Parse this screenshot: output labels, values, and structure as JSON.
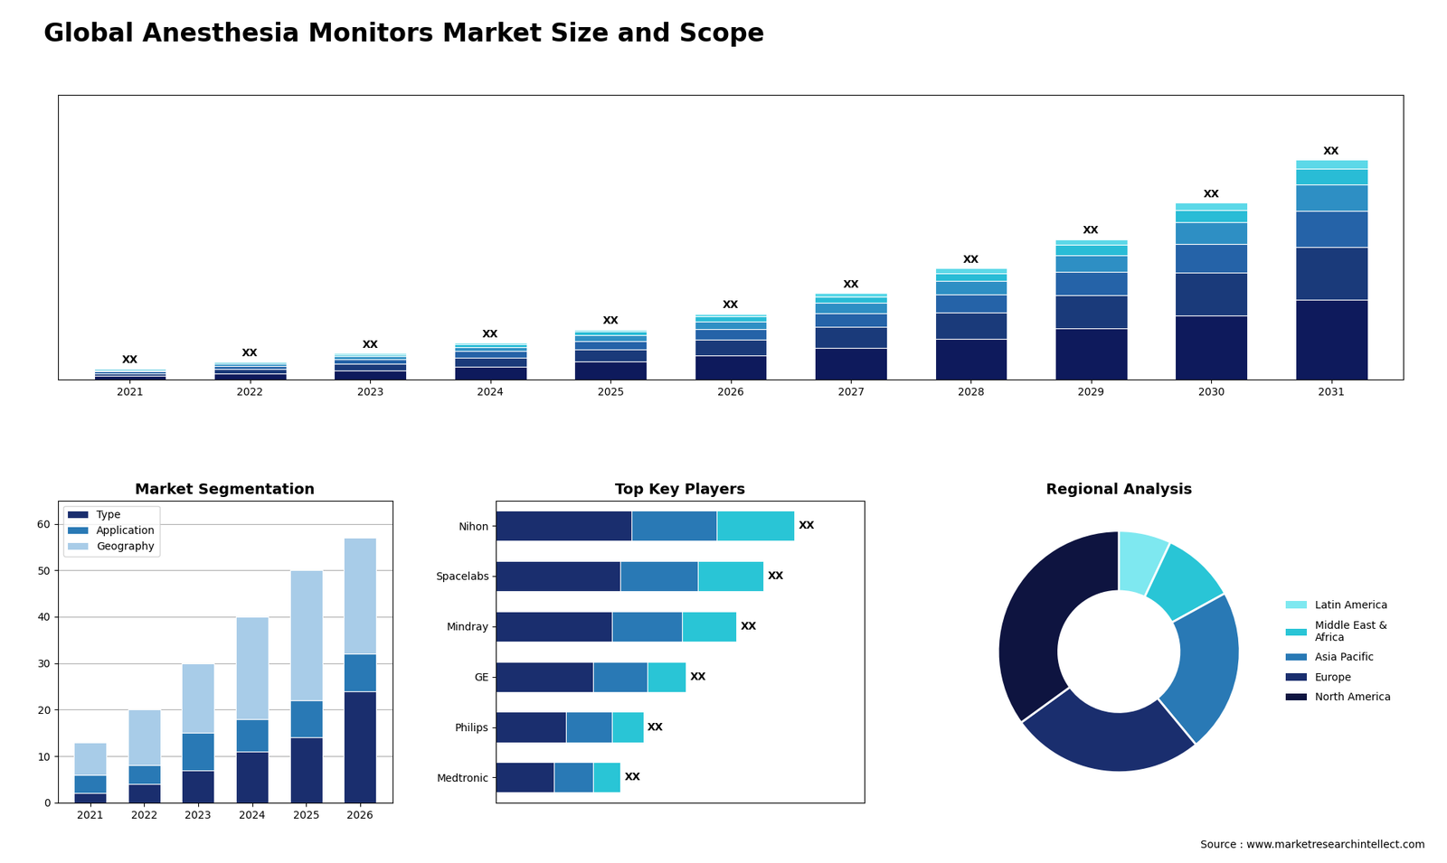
{
  "title": "Global Anesthesia Monitors Market Size and Scope",
  "source": "Source : www.marketresearchintellect.com",
  "chart_data": [
    {
      "type": "bar",
      "stacked": true,
      "categories": [
        "2021",
        "2022",
        "2023",
        "2024",
        "2025",
        "2026",
        "2027",
        "2028",
        "2029",
        "2030",
        "2031"
      ],
      "series": [
        {
          "color": "#0e1a5c",
          "values": [
            0.6,
            1.0,
            1.5,
            2.1,
            2.9,
            3.8,
            5.0,
            6.4,
            8.1,
            10.2,
            12.7
          ]
        },
        {
          "color": "#1a3a7a",
          "values": [
            0.4,
            0.7,
            1.0,
            1.4,
            1.9,
            2.5,
            3.3,
            4.2,
            5.3,
            6.7,
            8.3
          ]
        },
        {
          "color": "#2563a8",
          "values": [
            0.3,
            0.5,
            0.7,
            1.0,
            1.3,
            1.7,
            2.25,
            2.9,
            3.65,
            4.6,
            5.7
          ]
        },
        {
          "color": "#2e8fc4",
          "values": [
            0.2,
            0.35,
            0.5,
            0.7,
            0.95,
            1.25,
            1.65,
            2.1,
            2.65,
            3.35,
            4.15
          ]
        },
        {
          "color": "#29bcd6",
          "values": [
            0.15,
            0.2,
            0.3,
            0.42,
            0.56,
            0.74,
            0.97,
            1.25,
            1.58,
            2.0,
            2.47
          ]
        },
        {
          "color": "#5cd8e8",
          "values": [
            0.1,
            0.12,
            0.18,
            0.25,
            0.33,
            0.44,
            0.58,
            0.74,
            0.93,
            1.18,
            1.46
          ]
        }
      ],
      "ylim": [
        0,
        45
      ],
      "tick_labels": "x",
      "grid": false,
      "total_labels": [
        "XX",
        "XX",
        "XX",
        "XX",
        "XX",
        "XX",
        "XX",
        "XX",
        "XX",
        "XX",
        "XX"
      ]
    },
    {
      "type": "bar",
      "stacked": true,
      "title": "Market Segmentation",
      "categories": [
        "2021",
        "2022",
        "2023",
        "2024",
        "2025",
        "2026"
      ],
      "series": [
        {
          "name": "Type",
          "color": "#1a2e6e",
          "values": [
            2,
            4,
            7,
            11,
            14,
            24
          ]
        },
        {
          "name": "Application",
          "color": "#2979b5",
          "values": [
            4,
            4,
            8,
            7,
            8,
            8
          ]
        },
        {
          "name": "Geography",
          "color": "#a8cce8",
          "values": [
            7,
            12,
            15,
            22,
            28,
            25
          ]
        }
      ],
      "ylim": [
        0,
        65
      ],
      "yticks": [
        0,
        10,
        20,
        30,
        40,
        50,
        60
      ],
      "grid": true,
      "legend": "upper left"
    },
    {
      "type": "bar",
      "stacked": true,
      "orientation": "horizontal",
      "title": "Top Key Players",
      "categories": [
        "Nihon",
        "Spacelabs",
        "Mindray",
        "GE",
        "Philips",
        "Medtronic"
      ],
      "series": [
        {
          "color": "#1a2e6e",
          "values": [
            35,
            32,
            30,
            25,
            18,
            15
          ]
        },
        {
          "color": "#2979b5",
          "values": [
            22,
            20,
            18,
            14,
            12,
            10
          ]
        },
        {
          "color": "#29c5d6",
          "values": [
            20,
            17,
            14,
            10,
            8,
            7
          ]
        }
      ],
      "xlim": [
        0,
        95
      ],
      "tick_labels": "y",
      "grid": false,
      "total_labels": [
        "XX",
        "XX",
        "XX",
        "XX",
        "XX",
        "XX"
      ]
    },
    {
      "type": "pie",
      "title": "Regional Analysis",
      "categories": [
        "Latin America",
        "Middle East &\nAfrica",
        "Asia Pacific",
        "Europe",
        "North America"
      ],
      "values": [
        7,
        10,
        22,
        26,
        35
      ],
      "colors": [
        "#7ee8f0",
        "#29c5d6",
        "#2979b5",
        "#1a2e6e",
        "#0e1440"
      ],
      "legend": "center left"
    }
  ]
}
